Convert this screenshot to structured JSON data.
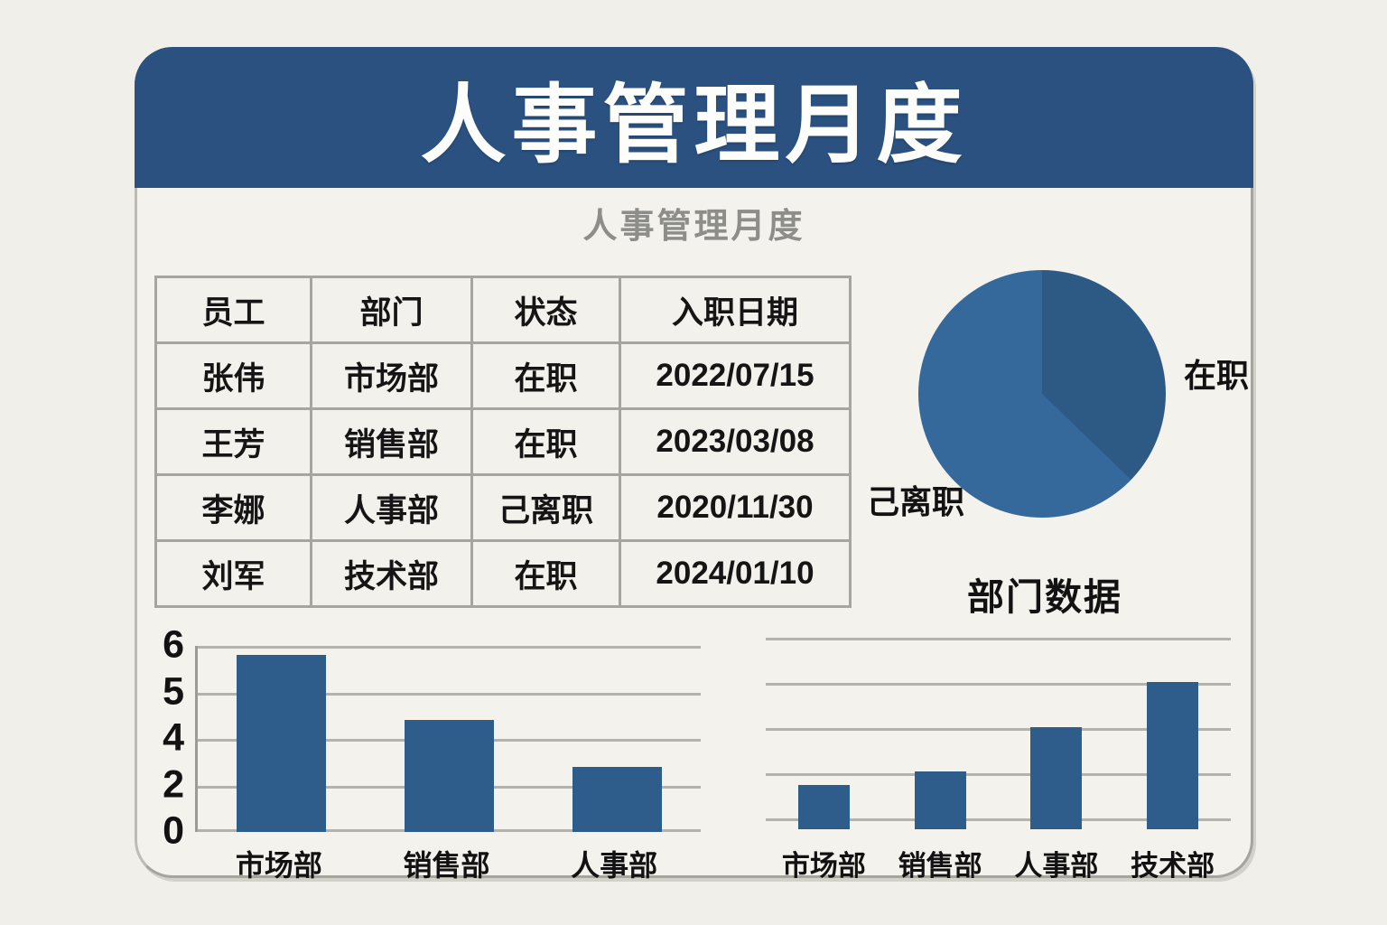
{
  "title": "人事管理月度",
  "subtitle": "人事管理月度",
  "table": {
    "columns": [
      "员工",
      "部门",
      "状态",
      "入职日期"
    ],
    "rows": [
      [
        "张伟",
        "市场部",
        "在职",
        "2022/07/15"
      ],
      [
        "王芳",
        "销售部",
        "在职",
        "2023/03/08"
      ],
      [
        "李娜",
        "人事部",
        "己离职",
        "2020/11/30"
      ],
      [
        "刘军",
        "技术部",
        "在职",
        "2024/01/10"
      ]
    ]
  },
  "pie": {
    "caption": "部门数据",
    "label_right": "在职",
    "label_left": "己离职"
  },
  "colors": {
    "band_blue": "#2a5180",
    "bar_blue": "#2e5d8c",
    "pie_dark": "#2d5a84",
    "pie_light": "#35699b",
    "page_bg": "#f1efe9",
    "card_bg": "#f4f2ec"
  },
  "chart_data": [
    {
      "type": "pie",
      "title": "部门数据",
      "labels": [
        "在职",
        "己离职"
      ],
      "values_pct": [
        37,
        63
      ],
      "slice_angle_deg": 134,
      "colors": [
        "#2d5a84",
        "#35699b"
      ],
      "legend_position": "outside-labels"
    },
    {
      "type": "bar",
      "title": "",
      "categories": [
        "市场部",
        "销售部",
        "人事部"
      ],
      "values": [
        5.7,
        3.6,
        2.1
      ],
      "yticks": [
        "6",
        "5",
        "4",
        "2",
        "0"
      ],
      "xlabel": "",
      "ylabel": "",
      "ylim": [
        0,
        6
      ],
      "grid": true
    },
    {
      "type": "bar",
      "title": "",
      "categories": [
        "市场部",
        "销售部",
        "人事部",
        "技术部"
      ],
      "values": [
        1.4,
        1.8,
        3.2,
        4.6
      ],
      "yticks": [],
      "xlabel": "",
      "ylabel": "",
      "ylim": [
        0,
        6
      ],
      "grid": true
    }
  ]
}
